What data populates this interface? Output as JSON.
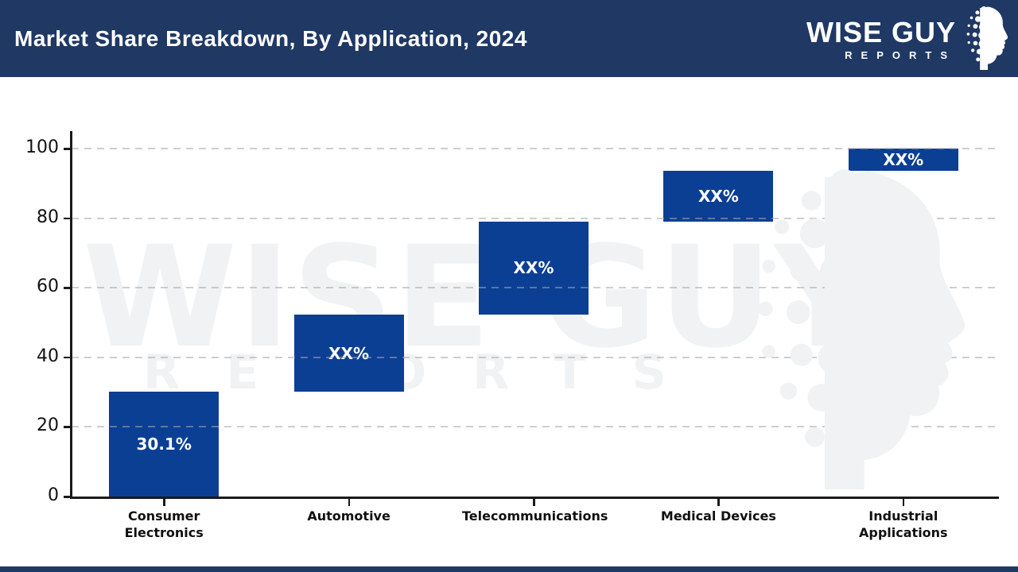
{
  "header": {
    "title": "Market Share Breakdown, By Application, 2024",
    "logo": {
      "line1": "WISE GUY",
      "line2": "REPORTS"
    }
  },
  "watermark": {
    "line1": "WISE GUY",
    "line2": "REPORTS"
  },
  "colors": {
    "header_bg": "#1f3864",
    "footer_bg": "#1f3864",
    "bar": "#0b3f94",
    "bar_label": "#ffffff",
    "axis": "#1a1a1a",
    "watermark": "#f1f2f4"
  },
  "chart_data": {
    "type": "bar",
    "subtype": "waterfall",
    "title": "Market Share Breakdown, By Application, 2024",
    "categories": [
      "Consumer Electronics",
      "Automotive",
      "Telecommunications",
      "Medical Devices",
      "Industrial Applications"
    ],
    "segments": [
      {
        "category": "Consumer Electronics",
        "start": 0,
        "end": 30.1,
        "label": "30.1%"
      },
      {
        "category": "Automotive",
        "start": 30.1,
        "end": 52.3,
        "label": "XX%"
      },
      {
        "category": "Telecommunications",
        "start": 52.3,
        "end": 79.1,
        "label": "XX%"
      },
      {
        "category": "Medical Devices",
        "start": 79.1,
        "end": 93.6,
        "label": "XX%"
      },
      {
        "category": "Industrial Applications",
        "start": 93.6,
        "end": 100,
        "label": "XX%"
      }
    ],
    "xlabel": "",
    "ylabel": "",
    "yticks": [
      0,
      20,
      40,
      60,
      80,
      100
    ],
    "ylim": [
      0,
      104.6
    ],
    "grid": "dashed-horizontal",
    "legend": "none",
    "bar_color": "#0b3f94",
    "bar_label_color": "#ffffff"
  }
}
